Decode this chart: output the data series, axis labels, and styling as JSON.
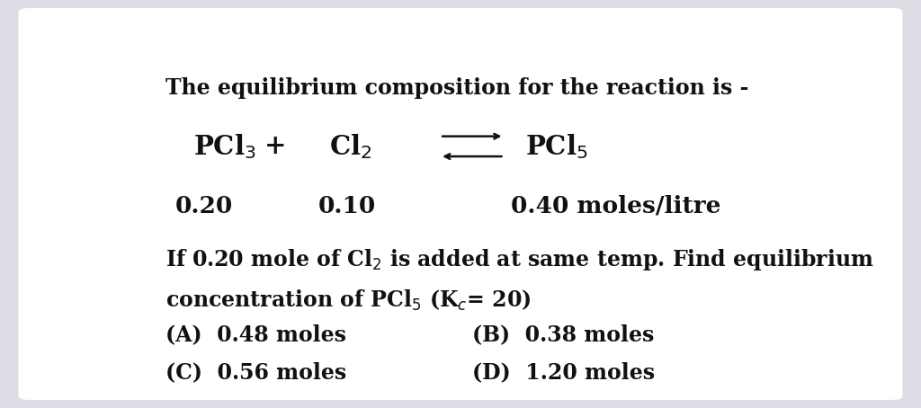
{
  "bg_color": "#dcdce4",
  "box_color": "#ffffff",
  "title_line": "The equilibrium composition for the reaction is -",
  "pcl3": "PCl$_3$",
  "plus": "+",
  "cl2": "Cl$_2$",
  "pcl5": "PCl$_5$",
  "pcl3_val": "0.20",
  "cl2_val": "0.10",
  "pcl5_val": "0.40 moles/litre",
  "question_line1": "If 0.20 mole of Cl$_2$ is added at same temp. Find equilibrium",
  "question_line2": "concentration of PCl$_5$ (K$_c$= 20)",
  "opt_A": "(A)  0.48 moles",
  "opt_B": "(B)  0.38 moles",
  "opt_C": "(C)  0.56 moles",
  "opt_D": "(D)  1.20 moles",
  "font_size_title": 17,
  "font_size_reaction": 21,
  "font_size_conc": 19,
  "font_size_question": 17,
  "font_size_options": 17,
  "text_color": "#111111"
}
